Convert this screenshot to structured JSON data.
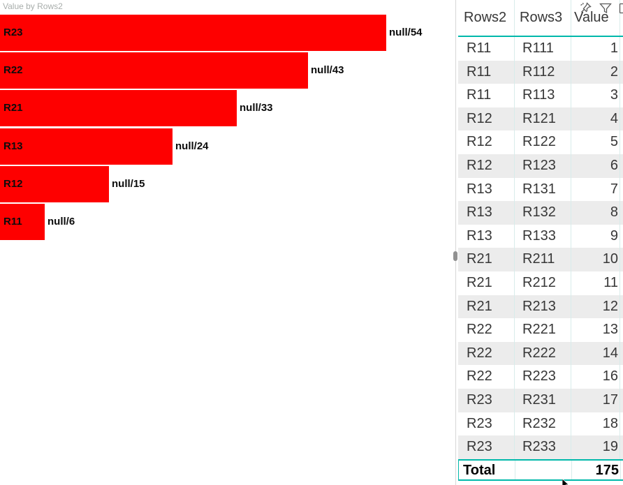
{
  "colors": {
    "accent": "#01b8aa",
    "grid": "#d8eceb",
    "stripe": "#ececec",
    "bar": "#fe0000"
  },
  "chart": {
    "title": "Value by Rows2"
  },
  "chart_data": {
    "type": "bar",
    "orientation": "horizontal",
    "title": "Value by Rows2",
    "categories": [
      "R23",
      "R22",
      "R21",
      "R13",
      "R12",
      "R11"
    ],
    "values": [
      54,
      43,
      33,
      24,
      15,
      6
    ],
    "data_labels": [
      "null/54",
      "null/43",
      "null/33",
      "null/24",
      "null/15",
      "null/6"
    ],
    "bar_color": "#fe0000",
    "xlim": [
      0,
      64
    ],
    "grid": false,
    "legend": false
  },
  "table": {
    "columns": [
      "Rows2",
      "Rows3",
      "Value"
    ],
    "rows": [
      [
        "R11",
        "R111",
        "1"
      ],
      [
        "R11",
        "R112",
        "2"
      ],
      [
        "R11",
        "R113",
        "3"
      ],
      [
        "R12",
        "R121",
        "4"
      ],
      [
        "R12",
        "R122",
        "5"
      ],
      [
        "R12",
        "R123",
        "6"
      ],
      [
        "R13",
        "R131",
        "7"
      ],
      [
        "R13",
        "R132",
        "8"
      ],
      [
        "R13",
        "R133",
        "9"
      ],
      [
        "R21",
        "R211",
        "10"
      ],
      [
        "R21",
        "R212",
        "11"
      ],
      [
        "R21",
        "R213",
        "12"
      ],
      [
        "R22",
        "R221",
        "13"
      ],
      [
        "R22",
        "R222",
        "14"
      ],
      [
        "R22",
        "R223",
        "16"
      ],
      [
        "R23",
        "R231",
        "17"
      ],
      [
        "R23",
        "R232",
        "18"
      ],
      [
        "R23",
        "R233",
        "19"
      ]
    ],
    "total": {
      "label": "Total",
      "value": "175"
    }
  },
  "visual_header": {
    "icons": [
      "pin",
      "filter",
      "focus-mode"
    ]
  }
}
